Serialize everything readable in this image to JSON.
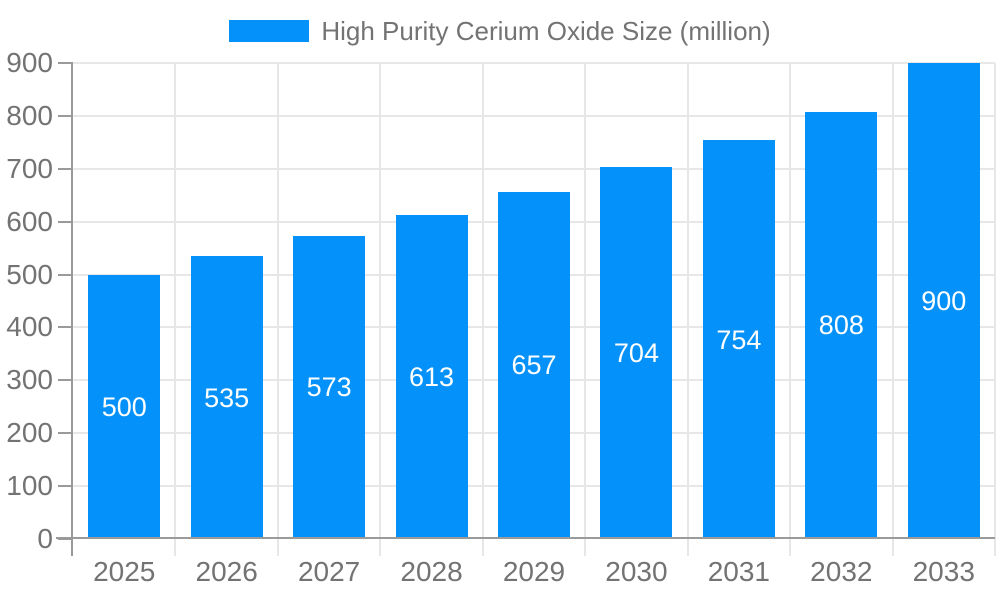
{
  "chart_data": {
    "type": "bar",
    "title": "High Purity Cerium Oxide Size (million)",
    "legend_label": "High Purity Cerium Oxide Size (million)",
    "legend_position": "top-center",
    "categories": [
      "2025",
      "2026",
      "2027",
      "2028",
      "2029",
      "2030",
      "2031",
      "2032",
      "2033"
    ],
    "series": [
      {
        "name": "High Purity Cerium Oxide Size (million)",
        "values": [
          500,
          535,
          573,
          613,
          657,
          704,
          754,
          808,
          900
        ]
      }
    ],
    "bar_value_labels": [
      "500",
      "535",
      "573",
      "613",
      "657",
      "704",
      "754",
      "808",
      "900"
    ],
    "xlabel": "",
    "ylabel": "",
    "ylim": [
      0,
      900
    ],
    "ystep": 100,
    "y_tick_labels": [
      "0",
      "100",
      "200",
      "300",
      "400",
      "500",
      "600",
      "700",
      "800",
      "900"
    ],
    "grid": true,
    "colors": {
      "bar": "#0591fa",
      "grid": "#e7e7e7",
      "axis": "#9a9a9a",
      "tick_text": "#737373",
      "bar_label": "#ffffff",
      "background": "#ffffff"
    }
  }
}
